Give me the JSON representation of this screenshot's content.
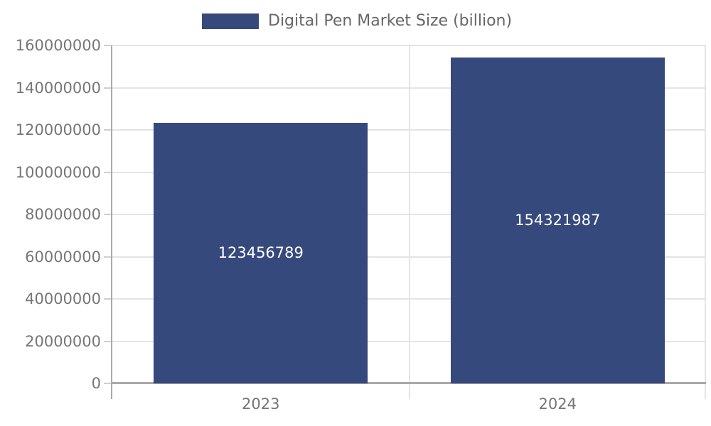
{
  "legend": {
    "label": "Digital Pen Market Size (billion)",
    "swatch_color": "#36497d"
  },
  "chart_data": {
    "type": "bar",
    "title": "",
    "xlabel": "",
    "ylabel": "",
    "categories": [
      "2023",
      "2024"
    ],
    "series": [
      {
        "name": "Digital Pen Market Size (billion)",
        "values": [
          123456789,
          154321987
        ]
      }
    ],
    "bar_labels": [
      "123456789",
      "154321987"
    ],
    "ylim": [
      0,
      160000000
    ],
    "ytick_step": 20000000,
    "ytick_values": [
      0,
      20000000,
      40000000,
      60000000,
      80000000,
      100000000,
      120000000,
      140000000,
      160000000
    ],
    "ytick_labels": [
      "0",
      "20000000",
      "40000000",
      "60000000",
      "80000000",
      "100000000",
      "120000000",
      "140000000",
      "160000000"
    ],
    "grid": true,
    "legend_position": "top",
    "colors": {
      "bar": "#36497d",
      "grid": "#e4e4e4",
      "axis_line": "#a9a9a9",
      "y_tick": "#cfcfcf",
      "x_tick": "#e4e4e4",
      "axis_label": "#767676",
      "bar_label": "#ffffff",
      "legend_text": "#666666",
      "background": "#ffffff"
    }
  }
}
